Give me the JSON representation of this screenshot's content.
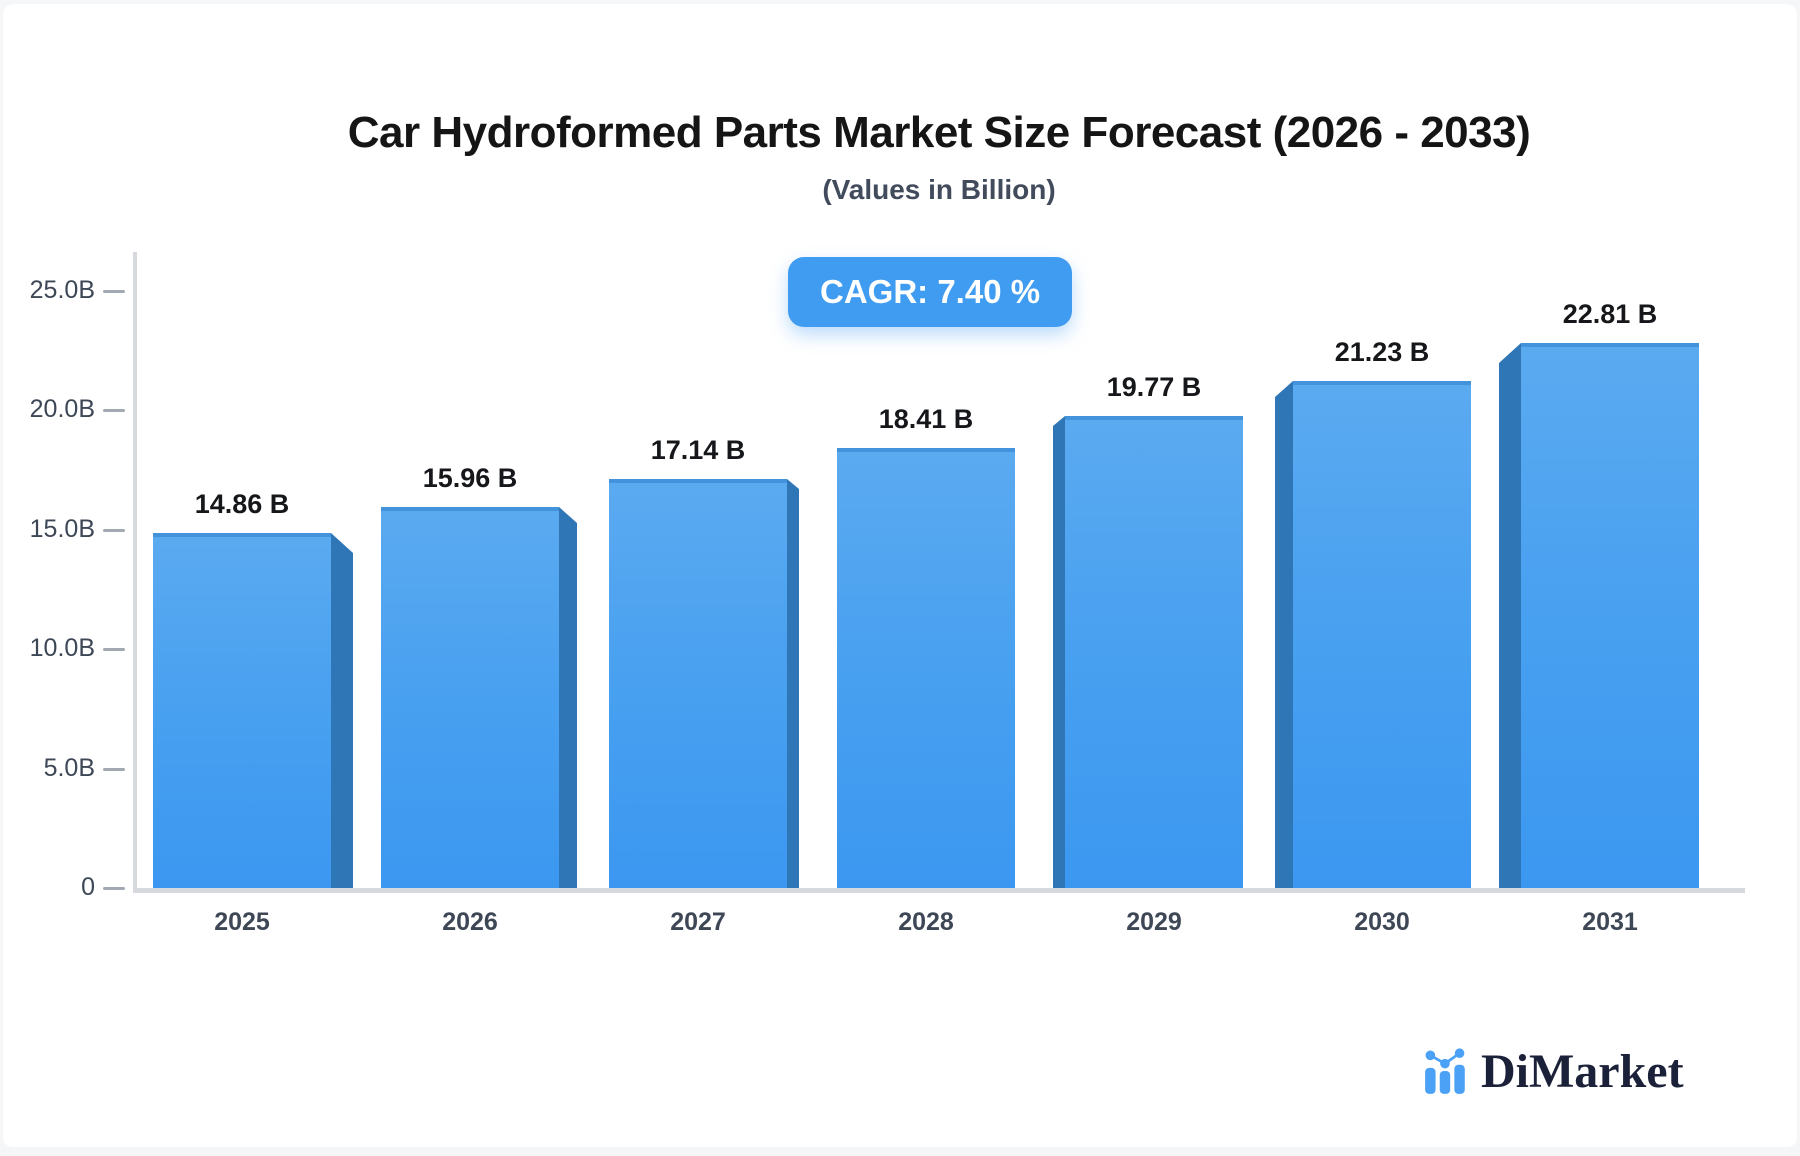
{
  "header": {
    "title": "Car Hydroformed Parts Market Size Forecast (2026 - 2033)",
    "subtitle": "(Values in Billion)"
  },
  "badge": {
    "label": "CAGR: 7.40 %",
    "background": "#3f9cf1",
    "text_color": "#ffffff"
  },
  "chart_data": {
    "type": "bar",
    "title": "Car Hydroformed Parts Market Size Forecast (2026 - 2033)",
    "subtitle": "(Values in Billion)",
    "categories": [
      "2025",
      "2026",
      "2027",
      "2028",
      "2029",
      "2030",
      "2031"
    ],
    "values": [
      14.86,
      15.96,
      17.14,
      18.41,
      19.77,
      21.23,
      22.81
    ],
    "value_labels": [
      "14.86 B",
      "15.96 B",
      "17.14 B",
      "18.41 B",
      "19.77 B",
      "21.23 B",
      "22.81 B"
    ],
    "xlabel": "",
    "ylabel": "",
    "ylim": [
      0,
      25
    ],
    "y_ticks": [
      {
        "label": "25.0B",
        "value": 25
      },
      {
        "label": "20.0B",
        "value": 20
      },
      {
        "label": "15.0B",
        "value": 15
      },
      {
        "label": "10.0B",
        "value": 10
      },
      {
        "label": "5.0B",
        "value": 5
      },
      {
        "label": "0",
        "value": 0
      }
    ],
    "grid": false,
    "legend": "none",
    "bar_style_3d": true,
    "colors": {
      "bar_face_top": "#5aaaf0",
      "bar_face_bottom": "#3b97f0",
      "bar_side": "#2e76b6",
      "bar_top_edge": "#4293dc",
      "axis_line": "#d6dade",
      "tick_text": "#3e4756"
    }
  },
  "logo": {
    "name": "DiMarket",
    "icon": "mini-bar-chart-icon"
  }
}
